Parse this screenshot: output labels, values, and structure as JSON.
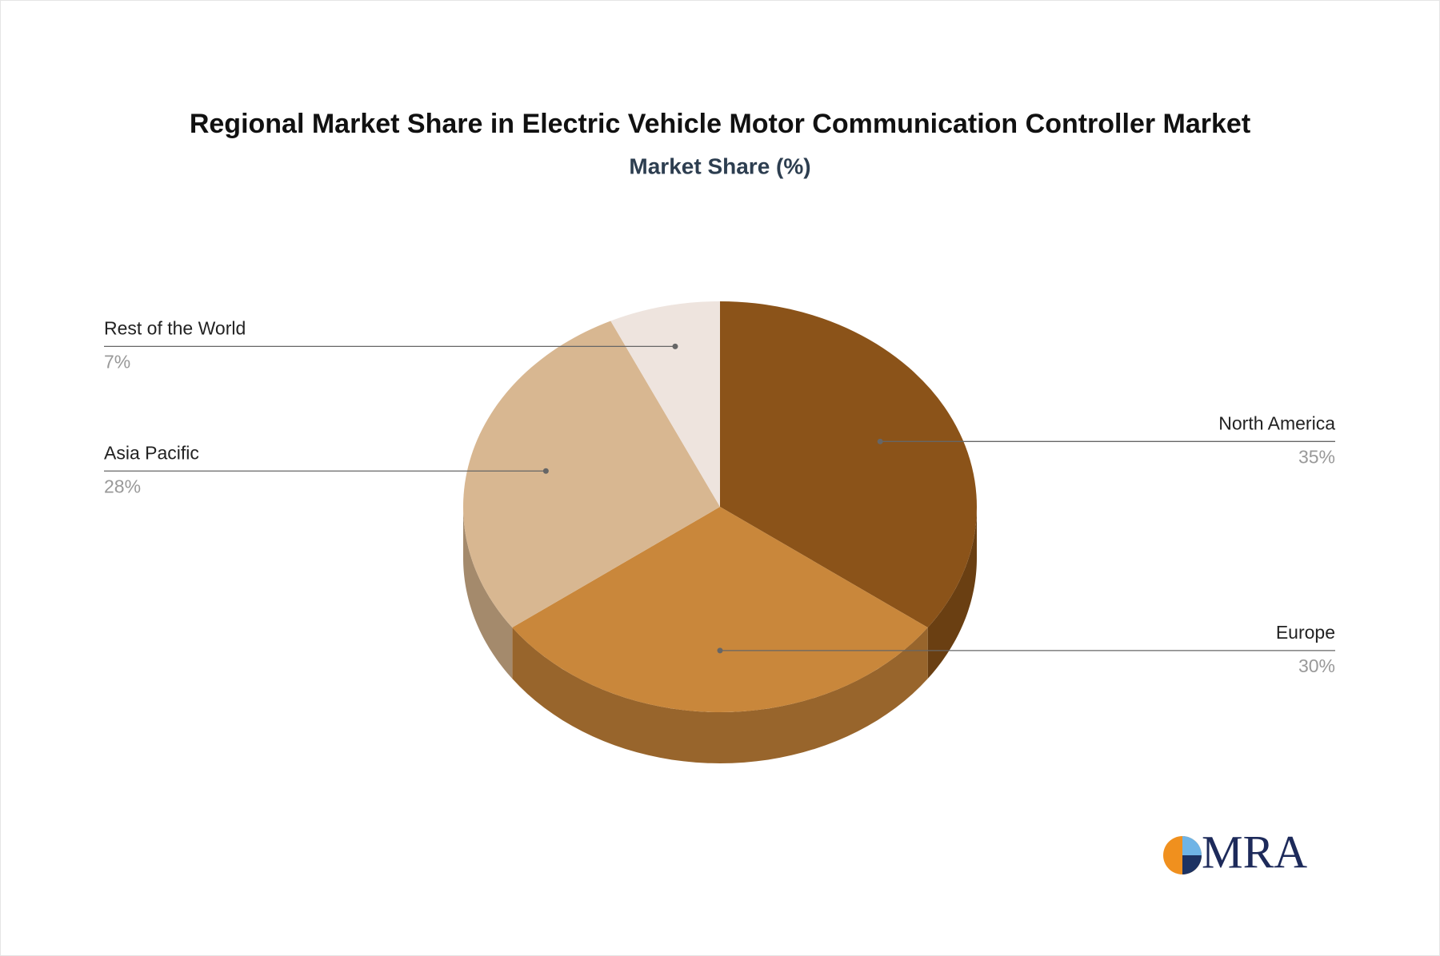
{
  "chart_data": {
    "type": "pie3d",
    "title": "Regional Market Share in Electric Vehicle Motor Communication Controller Market",
    "subtitle": "Market Share (%)",
    "categories": [
      "North America",
      "Europe",
      "Asia Pacific",
      "Rest of the World"
    ],
    "values": [
      35,
      30,
      28,
      7
    ],
    "value_labels": [
      "35%",
      "30%",
      "28%",
      "7%"
    ],
    "colors": [
      "#8b5319",
      "#c9873b",
      "#d8b791",
      "#eee4de"
    ],
    "side_colors": [
      "#6a3f12",
      "#98652c",
      "#a48a6c",
      "#b4aca7"
    ]
  },
  "logo": "MRA"
}
